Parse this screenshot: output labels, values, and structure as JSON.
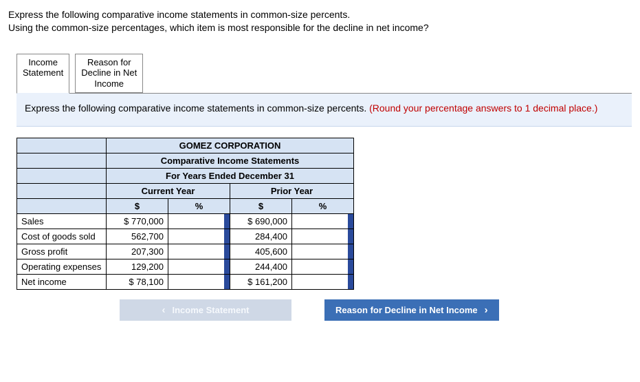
{
  "prompt": {
    "line1": "Express the following comparative income statements in common-size percents.",
    "line2": "Using the common-size percentages, which item is most responsible for the decline in net income?"
  },
  "tabs": {
    "income_statement": "Income\nStatement",
    "reason": "Reason for\nDecline in Net\nIncome"
  },
  "panel": {
    "instruction_plain": "Express the following comparative income statements in common-size percents. ",
    "instruction_red": "(Round your percentage answers to 1 decimal place.)"
  },
  "table": {
    "company": "GOMEZ CORPORATION",
    "title": "Comparative Income Statements",
    "period": "For Years Ended December 31",
    "current_label": "Current Year",
    "prior_label": "Prior Year",
    "dollar_sign": "$",
    "percent_sign": "%",
    "rows": [
      {
        "label": "Sales",
        "cur": "$  770,000",
        "pri": "$ 690,000"
      },
      {
        "label": "Cost of goods sold",
        "cur": "562,700",
        "pri": "284,400"
      },
      {
        "label": "Gross profit",
        "cur": "207,300",
        "pri": "405,600"
      },
      {
        "label": "Operating expenses",
        "cur": "129,200",
        "pri": "244,400"
      },
      {
        "label": "Net income",
        "cur": "$    78,100",
        "pri": "$ 161,200"
      }
    ]
  },
  "nav": {
    "prev_label": "Income Statement",
    "next_label": "Reason for Decline in Net Income",
    "chev_left": "‹",
    "chev_right": "›"
  },
  "colors": {
    "panel_bg": "#eaf1fb",
    "header_bg": "#d6e3f3",
    "input_accent": "#2a4a9b",
    "red_text": "#c00000",
    "next_btn": "#3b6fb6",
    "prev_btn": "#cfd8e6"
  }
}
